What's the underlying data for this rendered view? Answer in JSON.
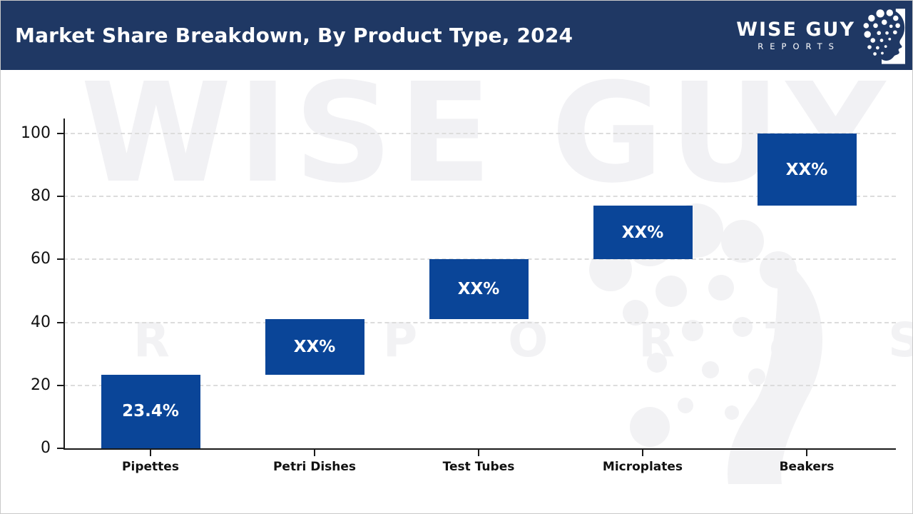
{
  "header": {
    "title": "Market Share Breakdown, By Product Type, 2024",
    "bg_color": "#1f3864",
    "logo": {
      "line1": "WISE GUY",
      "line2": "REPORTS"
    }
  },
  "watermark": {
    "line1": "WISE GUY",
    "line2": "R E P O R T S"
  },
  "chart_data": {
    "type": "bar",
    "subtype": "waterfall",
    "title": "Market Share Breakdown, By Product Type, 2024",
    "categories": [
      "Pipettes",
      "Petri Dishes",
      "Test Tubes",
      "Microplates",
      "Beakers"
    ],
    "series": [
      {
        "name": "Market Share (%)",
        "segments": [
          {
            "category": "Pipettes",
            "start": 0,
            "end": 23.4,
            "label": "23.4%"
          },
          {
            "category": "Petri Dishes",
            "start": 23.4,
            "end": 41,
            "label": "XX%"
          },
          {
            "category": "Test Tubes",
            "start": 41,
            "end": 60,
            "label": "XX%"
          },
          {
            "category": "Microplates",
            "start": 60,
            "end": 77,
            "label": "XX%"
          },
          {
            "category": "Beakers",
            "start": 77,
            "end": 100,
            "label": "XX%"
          }
        ]
      }
    ],
    "xlabel": "",
    "ylabel": "",
    "ylim": [
      0,
      100
    ],
    "yticks": [
      0,
      20,
      40,
      60,
      80,
      100
    ],
    "grid": "horizontal-dashed",
    "legend": "none",
    "bar_color": "#0a4598",
    "bar_label_color": "#ffffff",
    "axis_color": "#1a1a1a",
    "gridline_color": "#dcdcdc"
  }
}
